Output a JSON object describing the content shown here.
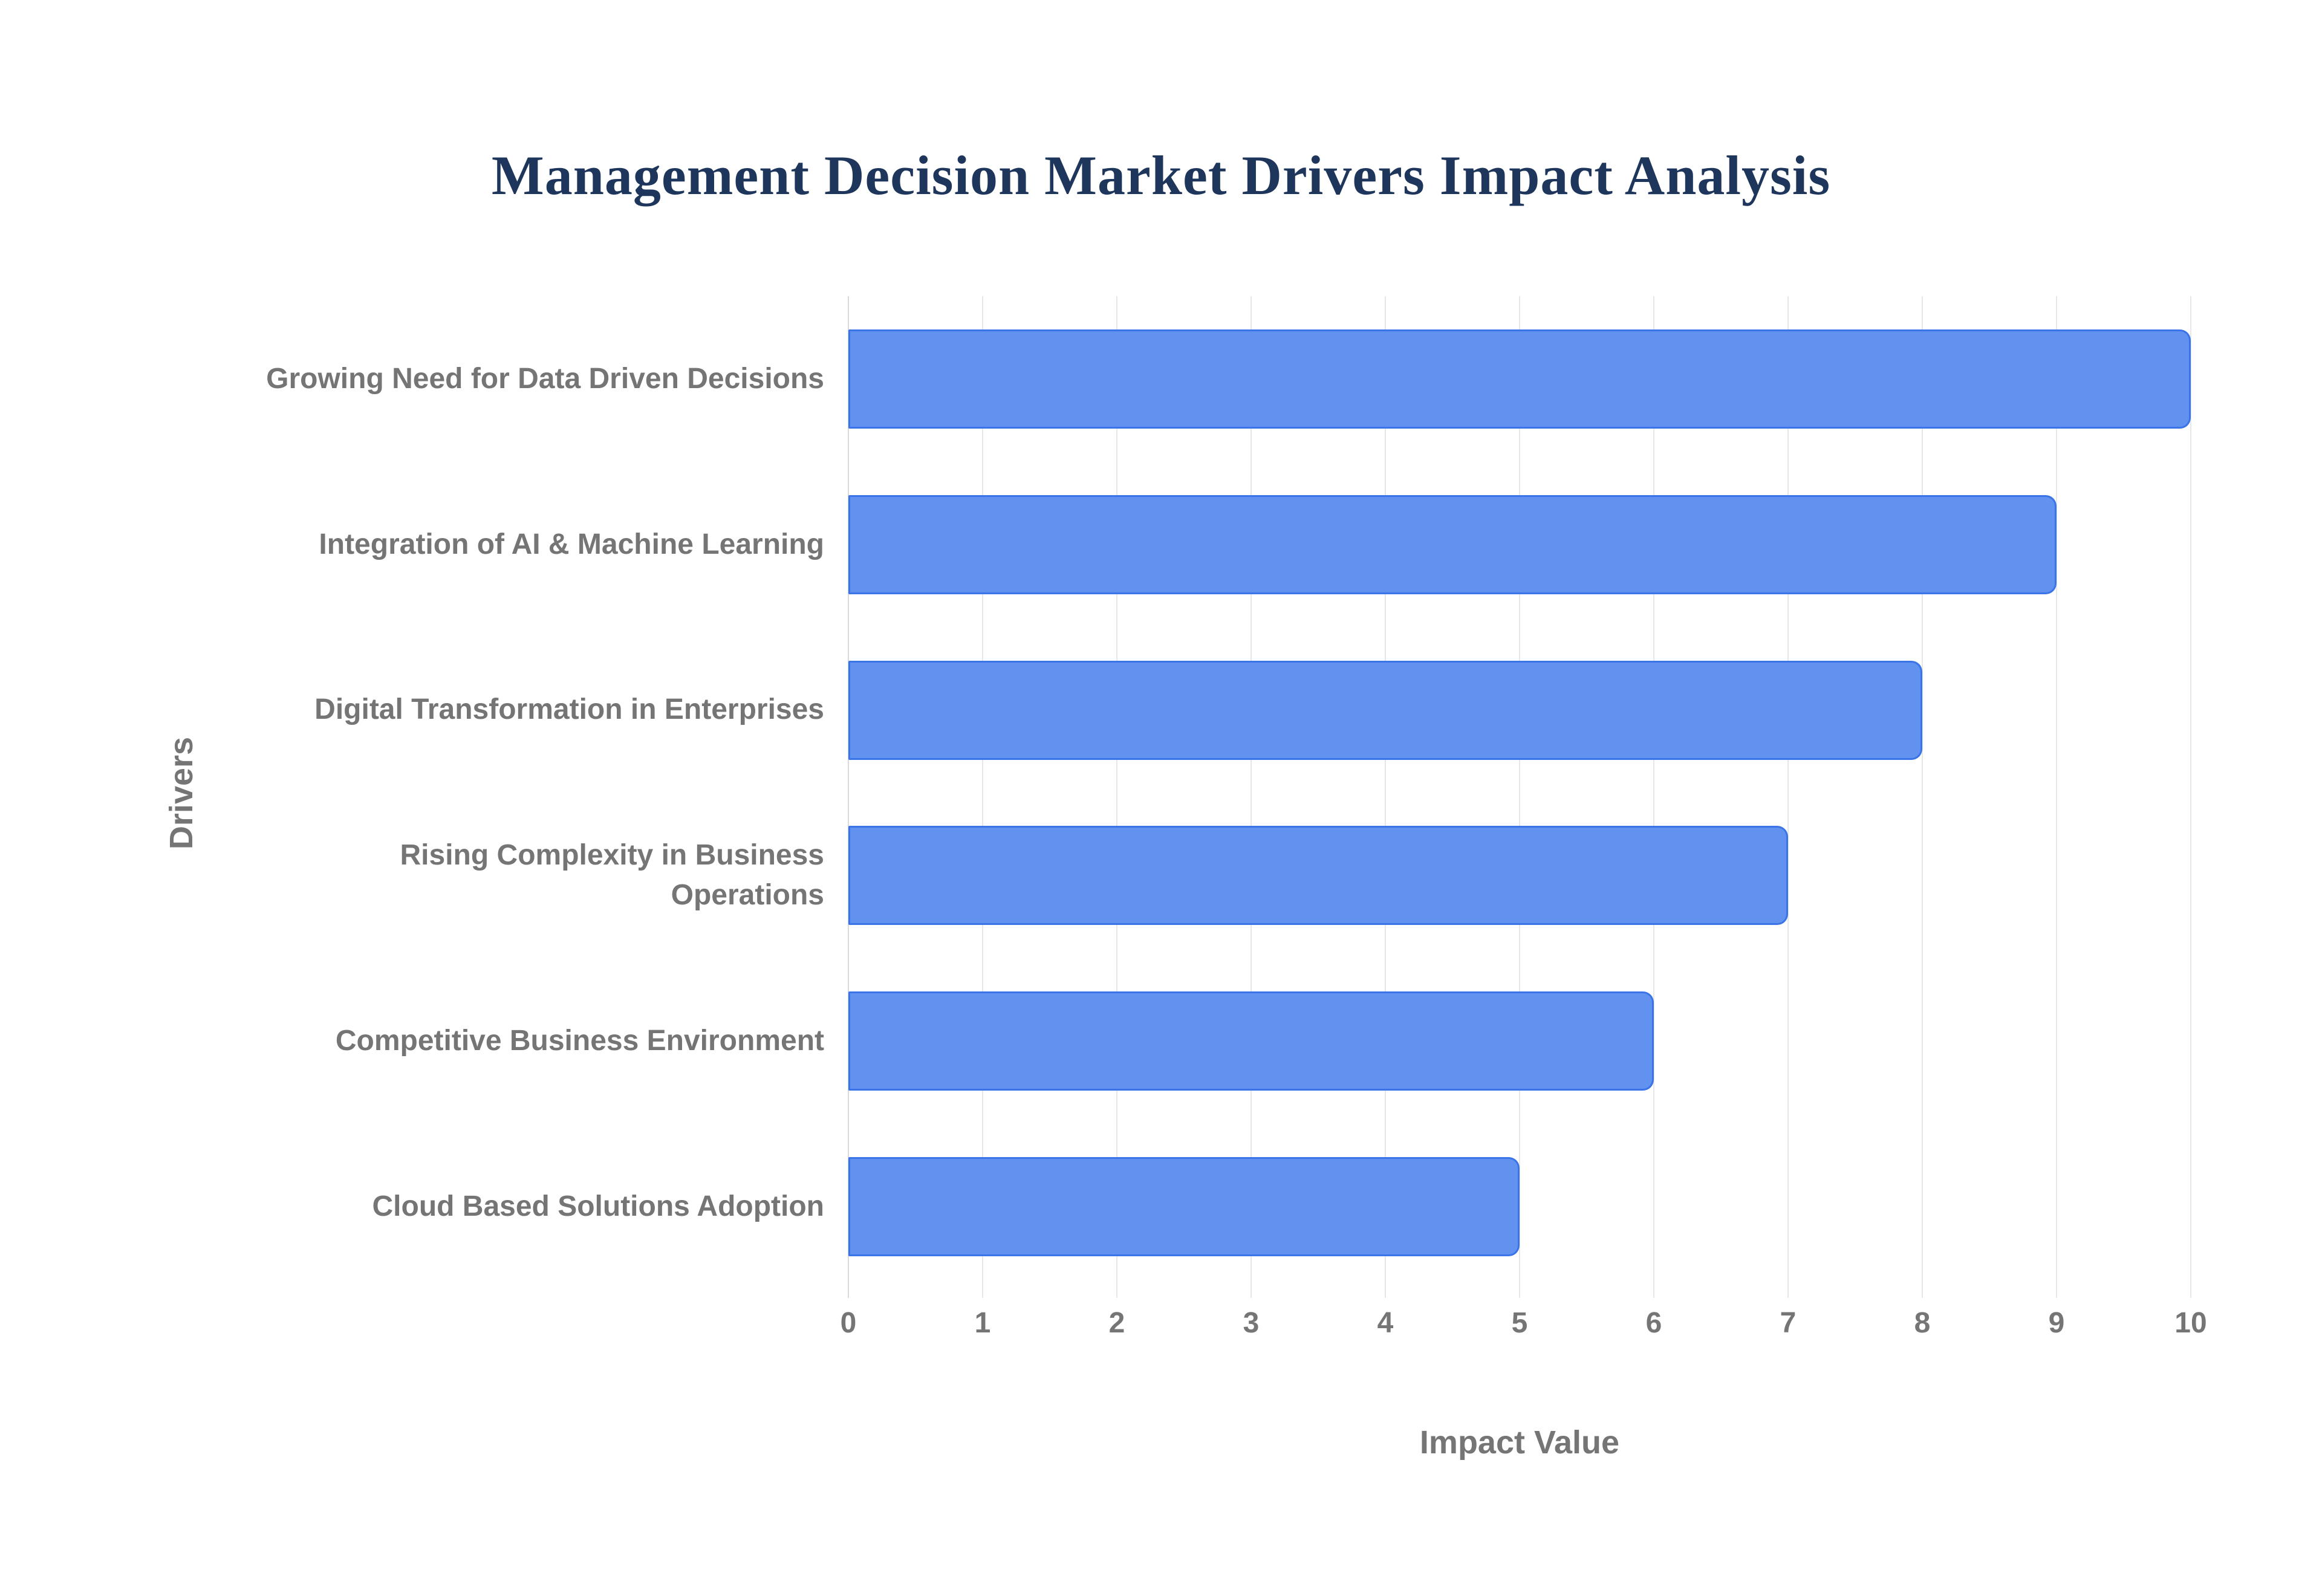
{
  "title": {
    "text": "Management Decision Market Drivers Impact Analysis",
    "color": "#1f365c"
  },
  "chart_data": {
    "type": "bar",
    "orientation": "horizontal",
    "title": "Management Decision Market Drivers Impact Analysis",
    "categories": [
      "Growing Need for Data Driven Decisions",
      "Integration of AI & Machine Learning",
      "Digital Transformation in Enterprises",
      "Rising Complexity in Business Operations",
      "Competitive Business Environment",
      "Cloud Based Solutions Adoption"
    ],
    "values": [
      10,
      9,
      8,
      7,
      6,
      5
    ],
    "xlabel": "Impact Value",
    "ylabel": "Drivers",
    "xlim": [
      0,
      10
    ],
    "xticks": [
      0,
      1,
      2,
      3,
      4,
      5,
      6,
      7,
      8,
      9,
      10
    ],
    "grid": true,
    "legend_position": "none",
    "bar_fill_color": "#6192f0",
    "bar_border_color": "#3b73e8",
    "axis_text_color": "#757575",
    "gridline_color": "#e7e7e7",
    "axis_line_color": "#d9d9d9"
  }
}
